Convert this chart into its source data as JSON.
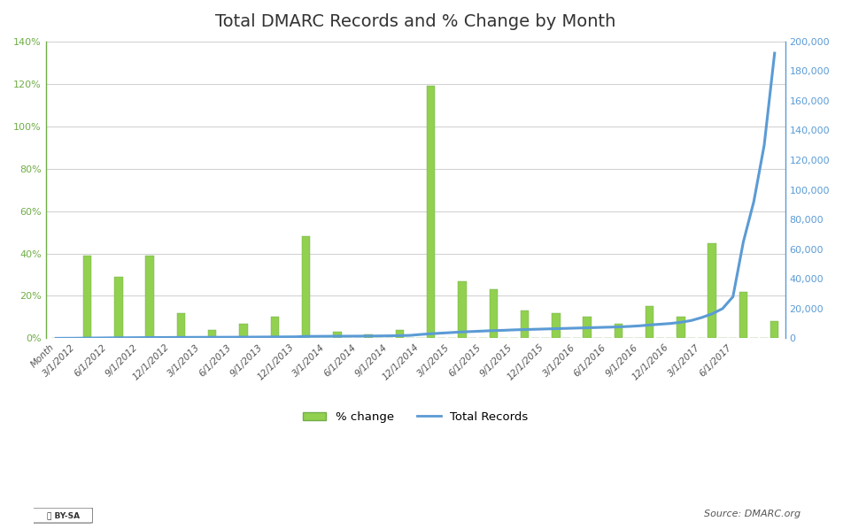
{
  "title": "Total DMARC Records and % Change by Month",
  "x_labels_quarterly": [
    "Month",
    "3/1/2012",
    "6/1/2012",
    "9/1/2012",
    "12/1/2012",
    "3/1/2013",
    "6/1/2013",
    "9/1/2013",
    "12/1/2013",
    "3/1/2014",
    "6/1/2014",
    "9/1/2014",
    "12/1/2014",
    "3/1/2015",
    "6/1/2015",
    "9/1/2015",
    "12/1/2015",
    "3/1/2016",
    "6/1/2016",
    "9/1/2016",
    "12/1/2016",
    "3/1/2017",
    "6/1/2017"
  ],
  "pct_change_monthly": [
    0.0,
    0.0,
    0.0,
    0.39,
    0.0,
    0.0,
    0.29,
    0.0,
    0.0,
    0.39,
    0.0,
    0.0,
    0.12,
    0.0,
    0.0,
    0.04,
    0.0,
    0.0,
    0.07,
    0.0,
    0.0,
    0.1,
    0.0,
    0.0,
    0.48,
    0.0,
    0.0,
    0.03,
    0.0,
    0.0,
    0.02,
    0.0,
    0.0,
    0.04,
    0.0,
    0.0,
    1.19,
    0.0,
    0.0,
    0.27,
    0.0,
    0.0,
    0.23,
    0.0,
    0.0,
    0.13,
    0.0,
    0.0,
    0.12,
    0.0,
    0.0,
    0.1,
    0.0,
    0.0,
    0.07,
    0.0,
    0.0,
    0.15,
    0.0,
    0.0,
    0.1,
    0.0,
    0.0,
    0.45,
    0.0,
    0.0,
    0.22,
    0.0,
    0.0,
    0.08
  ],
  "total_records_monthly": [
    10,
    50,
    80,
    200,
    250,
    320,
    380,
    420,
    470,
    530,
    560,
    600,
    640,
    660,
    690,
    710,
    730,
    760,
    800,
    840,
    890,
    940,
    980,
    1020,
    1300,
    1340,
    1380,
    1420,
    1450,
    1490,
    1530,
    1610,
    1700,
    1800,
    2000,
    2600,
    3100,
    3500,
    3900,
    4300,
    4600,
    4900,
    5200,
    5400,
    5700,
    5900,
    6100,
    6300,
    6500,
    6700,
    6900,
    7100,
    7300,
    7500,
    7700,
    8000,
    8400,
    9000,
    9500,
    10000,
    10800,
    12000,
    14000,
    16500,
    20000,
    28000,
    65000,
    92000,
    130000,
    192000
  ],
  "bar_color": "#92d050",
  "bar_edge_color": "#70ad47",
  "line_color": "#5b9bd5",
  "left_tick_color": "#70ad47",
  "right_tick_color": "#5b9bd5",
  "left_spine_color": "#70ad47",
  "right_spine_color": "#5b9bd5",
  "grid_color": "#d3d3d3",
  "title_fontsize": 14,
  "tick_fontsize": 8,
  "ylim_left": [
    0,
    1.4
  ],
  "ylim_right": [
    0,
    200000
  ],
  "legend_labels": [
    "% change",
    "Total Records"
  ],
  "source_text": "Source: DMARC.org",
  "bg_color": "#ffffff"
}
